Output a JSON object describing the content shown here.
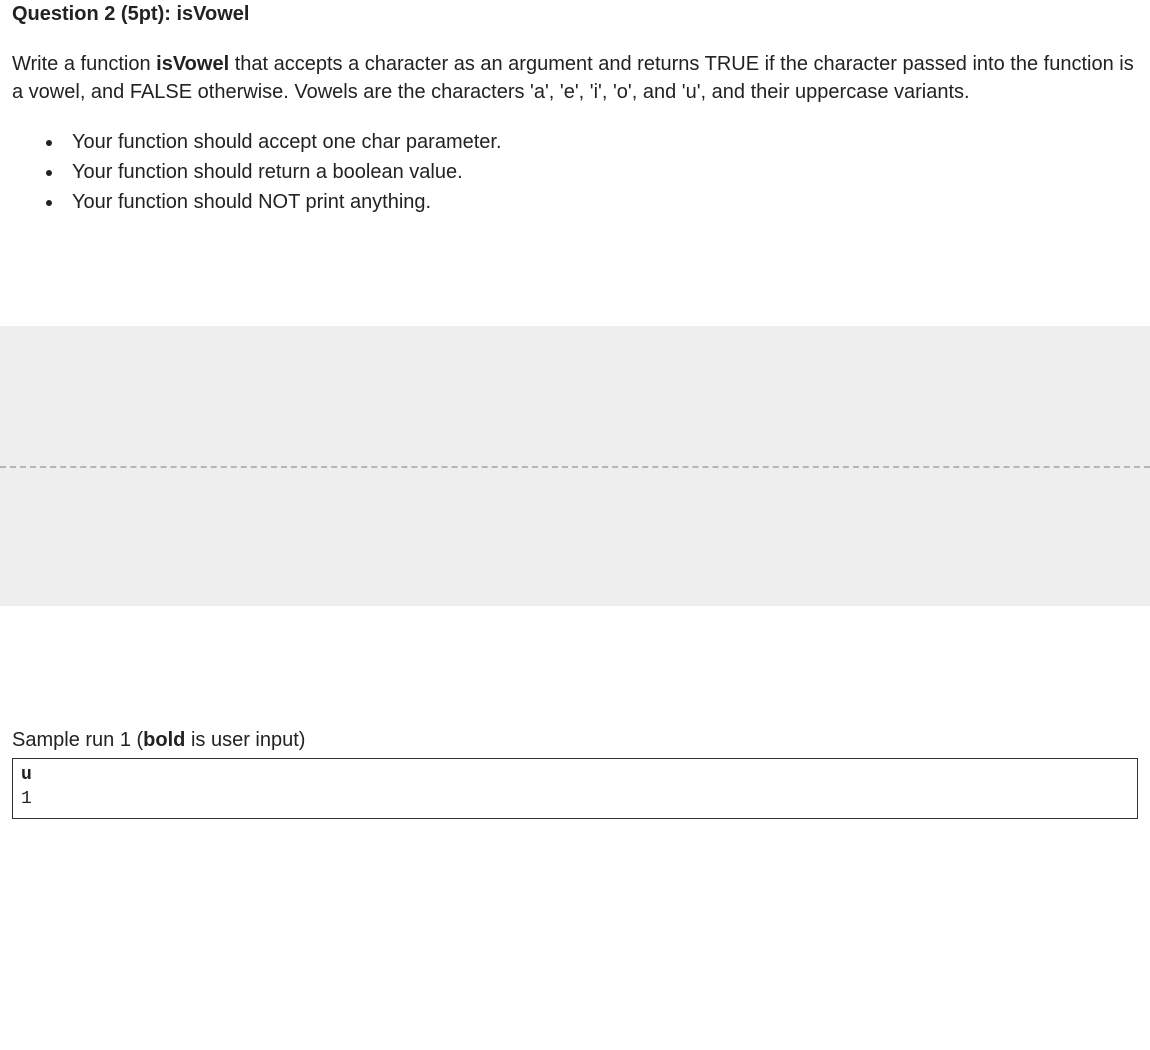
{
  "question": {
    "title": "Question 2 (5pt): isVowel",
    "desc_part1": "Write a function ",
    "desc_bold": "isVowel",
    "desc_part2": " that accepts a character as an argument and returns TRUE if the character passed into the function is a vowel, and FALSE otherwise. Vowels are the characters 'a', 'e', 'i', 'o', and 'u', and their uppercase variants.",
    "bullets": [
      "Your function should accept one char parameter.",
      "Your function should return a boolean value.",
      "Your function should NOT print anything."
    ],
    "sample_label_pre": "Sample run 1 (",
    "sample_label_bold": "bold",
    "sample_label_post": " is user input)",
    "sample_input": "u",
    "sample_output": "1"
  }
}
